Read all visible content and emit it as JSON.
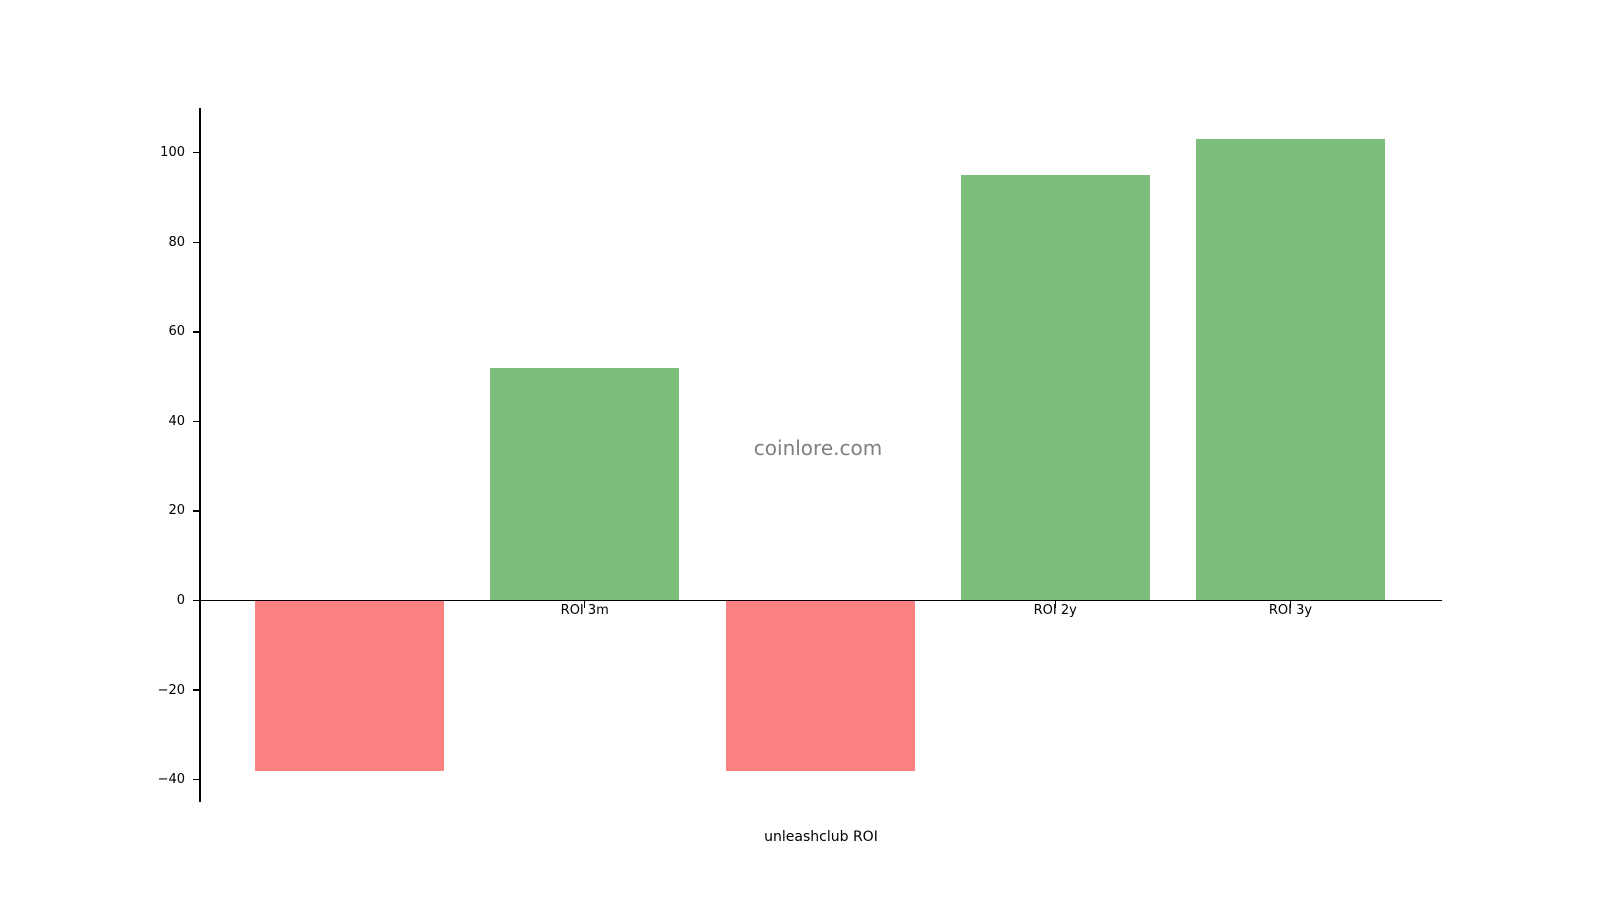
{
  "page": {
    "background_color": "#ffffff"
  },
  "watermark": {
    "text": "coinlore.com",
    "color": "#808080"
  },
  "chart_data": {
    "type": "bar",
    "title": "unleashclub ROI",
    "categories": [
      "",
      "ROI 3m",
      "",
      "ROI 2y",
      "ROI 3y"
    ],
    "values": [
      -38,
      52,
      -38,
      95,
      103
    ],
    "bar_colors": [
      "#fc8181",
      "#7dbe7d",
      "#fc8181",
      "#7dbe7d",
      "#7dbe7d"
    ],
    "positive_color": "#7dbe7d",
    "negative_color": "#fc8181",
    "y_ticks": [
      100,
      80,
      60,
      40,
      20,
      0,
      -20,
      -40
    ],
    "ylim": [
      -45,
      110
    ],
    "xlabel": "",
    "ylabel": "",
    "grid": false,
    "legend": false,
    "axis_color": "#000000",
    "tick_label_color": "#000000",
    "notes_hidden_labels": "category labels for bars 1 and 3 are covered by the negative (red) bars in the source image"
  }
}
